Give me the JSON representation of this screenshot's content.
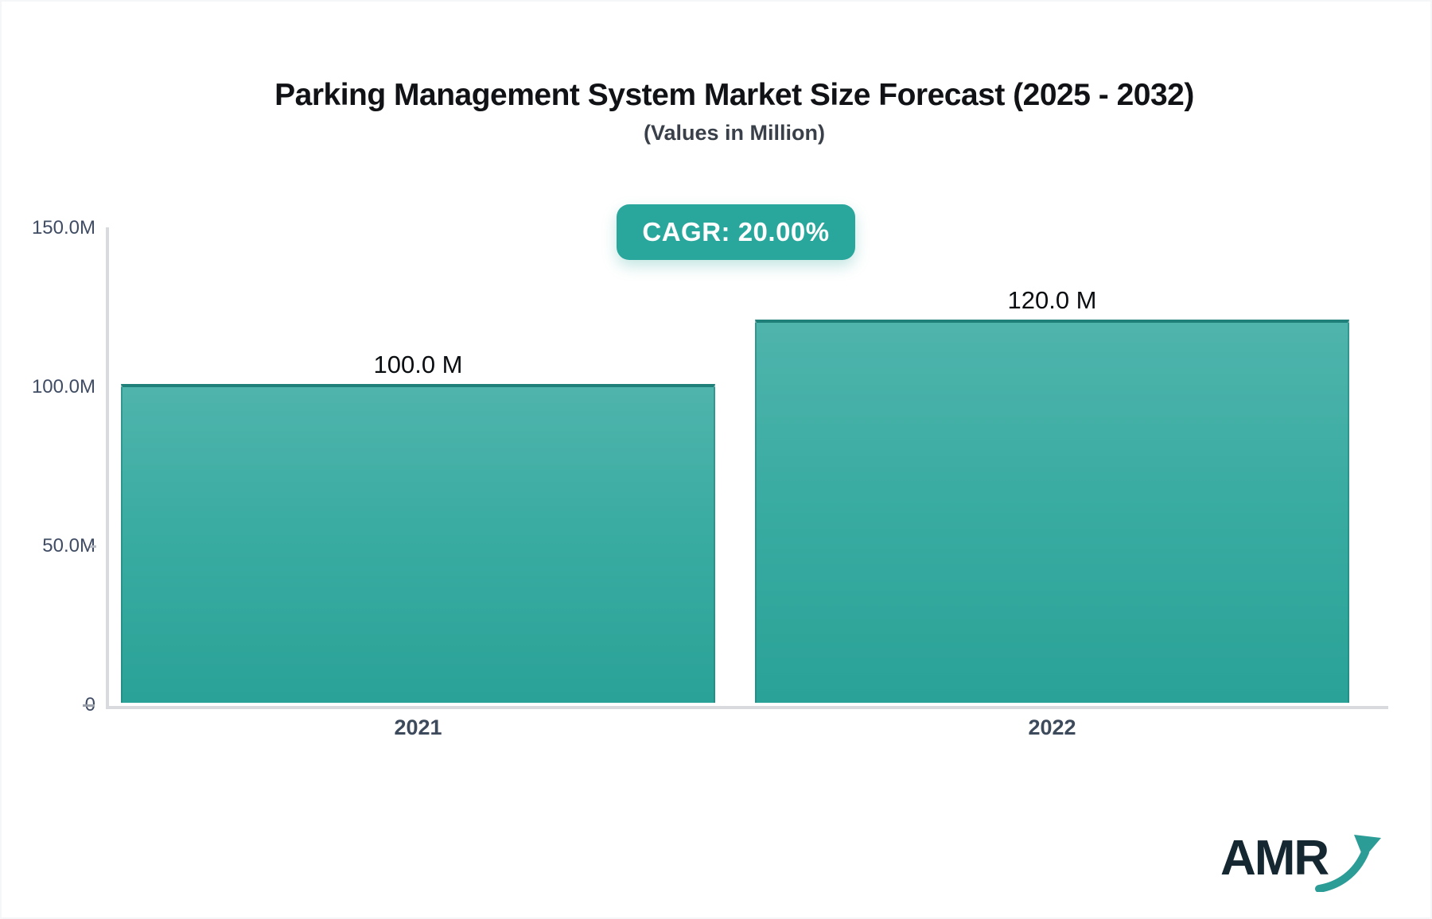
{
  "title": "Parking Management System Market Size Forecast (2025 - 2032)",
  "subtitle": "(Values in Million)",
  "badge": {
    "cagr_label": "CAGR: 20.00%"
  },
  "logo": {
    "text": "AMR",
    "arrow_icon": "trend-up-arrow"
  },
  "colors": {
    "badge_teal": "#2aa79c",
    "bar_gradient_top": "#4fb4ac",
    "bar_gradient_bottom": "#2aa297",
    "bar_border": "#1f7f79",
    "axis_gray": "#d8dade",
    "axis_label_slate": "#3f4c63",
    "title_black": "#101216",
    "logo_dark": "#152731",
    "logo_arrow_teal": "#2b9c96"
  },
  "chart_data": {
    "type": "bar",
    "title": "Parking Management System Market Size Forecast (2025 - 2032)",
    "subtitle": "(Values in Million)",
    "unit": "Million",
    "cagr_percent": 20.0,
    "categories": [
      "2021",
      "2022"
    ],
    "values": [
      100.0,
      120.0
    ],
    "value_labels": [
      "100.0 M",
      "120.0 M"
    ],
    "ylim": [
      0,
      150
    ],
    "ytick_labels": [
      "150.0M",
      "100.0M",
      "50.0M",
      "0"
    ],
    "ytick_values": [
      150,
      100,
      50,
      0
    ],
    "grid": "off",
    "legend": "none",
    "bar_color": "teal gradient"
  }
}
